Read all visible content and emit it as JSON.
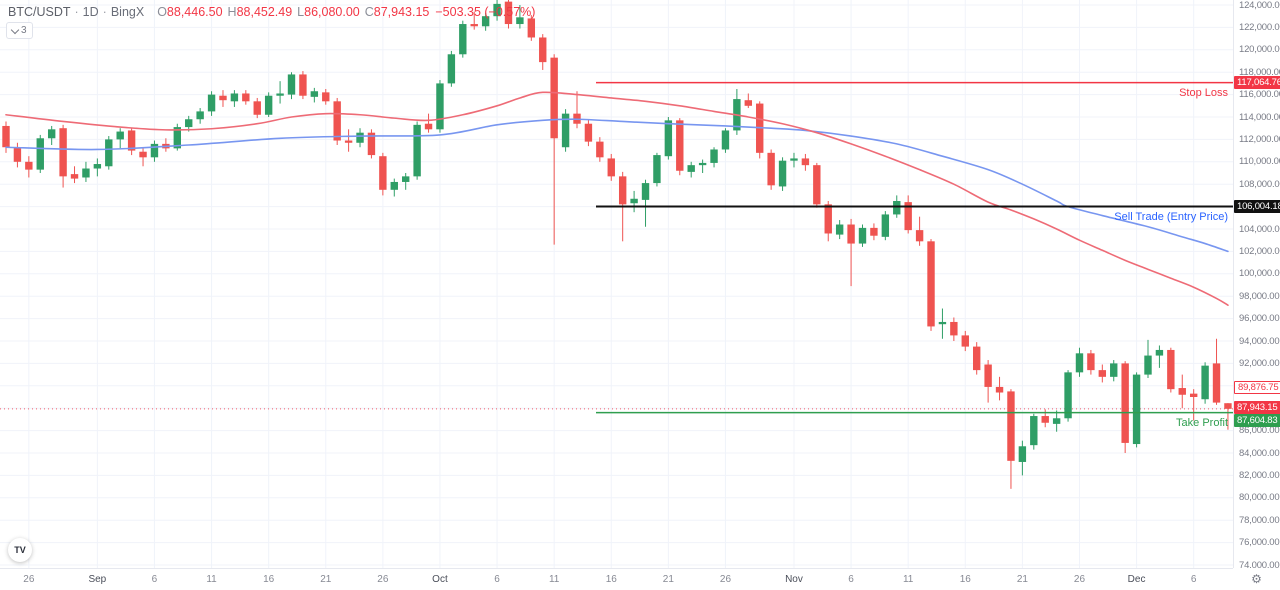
{
  "header": {
    "symbol": "BTC/USDT",
    "separator": "·",
    "interval": "1D",
    "exchange": "BingX",
    "hidden_count": "3",
    "ohlc": {
      "o_label": "O",
      "o": "88,446.50",
      "h_label": "H",
      "h": "88,452.49",
      "l_label": "L",
      "l": "86,080.00",
      "c_label": "C",
      "c": "87,943.15",
      "change": "−503.35 (−0.57%)"
    }
  },
  "icons": {
    "gear": "⚙",
    "logo": "TV"
  },
  "colors": {
    "up": "#2f9e66",
    "down": "#ef5350",
    "ma_blue": "#7896f0",
    "ma_red": "#ee6b76",
    "stop_loss": "#f23645",
    "entry": "#111111",
    "take_profit": "#2f9e4f",
    "last_price": "#f23645",
    "axis_text": "#787b86",
    "grid": "#f0f3fa"
  },
  "chart_data": {
    "type": "candlestick",
    "title": "BTC/USDT",
    "interval": "1D",
    "exchange": "BingX",
    "ylim": [
      74000,
      124000
    ],
    "y_grid_step": 2000,
    "grid": true,
    "price_axis_labels": [
      "124,000.00",
      "122,000.00",
      "120,000.00",
      "118,000.00",
      "116,000.00",
      "114,000.00",
      "112,000.00",
      "110,000.00",
      "108,000.00",
      "106,000.00",
      "104,000.00",
      "102,000.00",
      "100,000.00",
      "98,000.00",
      "96,000.00",
      "94,000.00",
      "92,000.00",
      "90,000.00",
      "88,000.00",
      "86,000.00",
      "84,000.00",
      "82,000.00",
      "80,000.00",
      "78,000.00",
      "76,000.00",
      "74,000.00"
    ],
    "time_ticks": [
      {
        "label": "26",
        "i": 2,
        "major": false
      },
      {
        "label": "Sep",
        "i": 8,
        "major": true
      },
      {
        "label": "6",
        "i": 13,
        "major": false
      },
      {
        "label": "11",
        "i": 18,
        "major": false
      },
      {
        "label": "16",
        "i": 23,
        "major": false
      },
      {
        "label": "21",
        "i": 28,
        "major": false
      },
      {
        "label": "26",
        "i": 33,
        "major": false
      },
      {
        "label": "Oct",
        "i": 38,
        "major": true
      },
      {
        "label": "6",
        "i": 43,
        "major": false
      },
      {
        "label": "11",
        "i": 48,
        "major": false
      },
      {
        "label": "16",
        "i": 53,
        "major": false
      },
      {
        "label": "21",
        "i": 58,
        "major": false
      },
      {
        "label": "26",
        "i": 63,
        "major": false
      },
      {
        "label": "Nov",
        "i": 69,
        "major": true
      },
      {
        "label": "6",
        "i": 74,
        "major": false
      },
      {
        "label": "11",
        "i": 79,
        "major": false
      },
      {
        "label": "16",
        "i": 84,
        "major": false
      },
      {
        "label": "21",
        "i": 89,
        "major": false
      },
      {
        "label": "26",
        "i": 94,
        "major": false
      },
      {
        "label": "Dec",
        "i": 99,
        "major": true
      },
      {
        "label": "6",
        "i": 104,
        "major": false
      }
    ],
    "candles": [
      [
        113200,
        113600,
        110800,
        111300
      ],
      [
        111300,
        111700,
        109500,
        110000
      ],
      [
        110000,
        110500,
        108600,
        109300
      ],
      [
        109300,
        112400,
        109000,
        112100
      ],
      [
        112100,
        113200,
        111500,
        112900
      ],
      [
        113000,
        113300,
        107700,
        108700
      ],
      [
        108900,
        109600,
        108100,
        108500
      ],
      [
        108600,
        110000,
        108200,
        109400
      ],
      [
        109400,
        110300,
        108700,
        109800
      ],
      [
        109600,
        112300,
        109300,
        112000
      ],
      [
        112000,
        113000,
        111200,
        112700
      ],
      [
        112800,
        113000,
        110600,
        111000
      ],
      [
        110900,
        111200,
        109600,
        110400
      ],
      [
        110400,
        111900,
        110000,
        111600
      ],
      [
        111600,
        112100,
        110900,
        111200
      ],
      [
        111200,
        113400,
        111000,
        113100
      ],
      [
        113100,
        114100,
        112700,
        113800
      ],
      [
        113800,
        114800,
        113400,
        114500
      ],
      [
        114500,
        116300,
        114100,
        116000
      ],
      [
        115900,
        116400,
        114900,
        115500
      ],
      [
        115400,
        116400,
        114900,
        116100
      ],
      [
        116100,
        116400,
        115100,
        115400
      ],
      [
        115400,
        115700,
        113900,
        114200
      ],
      [
        114200,
        116200,
        114000,
        115900
      ],
      [
        115900,
        117200,
        115200,
        116100
      ],
      [
        116000,
        118000,
        115600,
        117800
      ],
      [
        117800,
        118100,
        115600,
        115900
      ],
      [
        115800,
        116600,
        115300,
        116300
      ],
      [
        116200,
        116500,
        115100,
        115400
      ],
      [
        115400,
        115700,
        111500,
        111900
      ],
      [
        111900,
        112900,
        110900,
        111700
      ],
      [
        111700,
        113000,
        111300,
        112600
      ],
      [
        112600,
        112900,
        110300,
        110600
      ],
      [
        110500,
        110800,
        107000,
        107500
      ],
      [
        107500,
        108500,
        106900,
        108200
      ],
      [
        108200,
        109000,
        107500,
        108700
      ],
      [
        108700,
        113600,
        108400,
        113300
      ],
      [
        113400,
        114300,
        112600,
        112900
      ],
      [
        112900,
        117300,
        112600,
        117000
      ],
      [
        117000,
        119900,
        116700,
        119600
      ],
      [
        119600,
        122600,
        119300,
        122300
      ],
      [
        122300,
        123400,
        121800,
        122100
      ],
      [
        122100,
        123300,
        121700,
        123000
      ],
      [
        123000,
        124600,
        122600,
        124100
      ],
      [
        124300,
        125400,
        121900,
        122300
      ],
      [
        122300,
        124000,
        121900,
        122900
      ],
      [
        122800,
        123100,
        120800,
        121100
      ],
      [
        121100,
        121400,
        118200,
        118900
      ],
      [
        119300,
        119600,
        102600,
        112100
      ],
      [
        111300,
        114700,
        110900,
        114300
      ],
      [
        114300,
        116300,
        113000,
        113400
      ],
      [
        113400,
        113800,
        111400,
        111800
      ],
      [
        111800,
        112200,
        110000,
        110400
      ],
      [
        110300,
        110700,
        108300,
        108700
      ],
      [
        108700,
        109100,
        102900,
        106200
      ],
      [
        106300,
        107400,
        105500,
        106700
      ],
      [
        106600,
        108400,
        104200,
        108100
      ],
      [
        108100,
        110800,
        107800,
        110600
      ],
      [
        110500,
        114000,
        110200,
        113700
      ],
      [
        113700,
        113900,
        108800,
        109200
      ],
      [
        109100,
        110000,
        108600,
        109700
      ],
      [
        109700,
        110200,
        109000,
        109900
      ],
      [
        109900,
        111300,
        109500,
        111100
      ],
      [
        111100,
        113000,
        110800,
        112800
      ],
      [
        112800,
        116500,
        112400,
        115600
      ],
      [
        115500,
        116100,
        114800,
        115000
      ],
      [
        115200,
        115400,
        110300,
        110800
      ],
      [
        110800,
        111100,
        107500,
        107900
      ],
      [
        107800,
        110400,
        107400,
        110100
      ],
      [
        110100,
        110800,
        109500,
        110300
      ],
      [
        110300,
        110700,
        109200,
        109700
      ],
      [
        109700,
        109900,
        105900,
        106200
      ],
      [
        106200,
        106500,
        102900,
        103600
      ],
      [
        103500,
        104800,
        103100,
        104400
      ],
      [
        104400,
        104900,
        98900,
        102700
      ],
      [
        102700,
        104400,
        102400,
        104100
      ],
      [
        104100,
        104500,
        103000,
        103400
      ],
      [
        103300,
        105600,
        103000,
        105300
      ],
      [
        105300,
        107000,
        105000,
        106500
      ],
      [
        106400,
        107000,
        103600,
        103900
      ],
      [
        103900,
        105100,
        102500,
        102900
      ],
      [
        102900,
        103100,
        94900,
        95300
      ],
      [
        95500,
        96900,
        94200,
        95700
      ],
      [
        95700,
        96100,
        94000,
        94500
      ],
      [
        94500,
        94900,
        93100,
        93500
      ],
      [
        93500,
        93900,
        91000,
        91400
      ],
      [
        91900,
        92300,
        88500,
        89900
      ],
      [
        89900,
        90800,
        88700,
        89400
      ],
      [
        89500,
        89700,
        80800,
        83300
      ],
      [
        83200,
        85100,
        82000,
        84600
      ],
      [
        84700,
        87500,
        84300,
        87300
      ],
      [
        87300,
        87900,
        86300,
        86700
      ],
      [
        86600,
        87800,
        85900,
        87100
      ],
      [
        87100,
        91400,
        86800,
        91200
      ],
      [
        91200,
        93400,
        90800,
        92900
      ],
      [
        92900,
        93200,
        91000,
        91400
      ],
      [
        91400,
        91900,
        90300,
        90800
      ],
      [
        90800,
        92300,
        90400,
        92000
      ],
      [
        92000,
        92200,
        84000,
        84900
      ],
      [
        84800,
        91200,
        84500,
        91000
      ],
      [
        91000,
        94100,
        90700,
        92700
      ],
      [
        92700,
        93600,
        91600,
        93200
      ],
      [
        93200,
        93400,
        89400,
        89700
      ],
      [
        89800,
        91000,
        88000,
        89200
      ],
      [
        89300,
        89700,
        86900,
        89000
      ],
      [
        88800,
        92100,
        88400,
        91800
      ],
      [
        92000,
        94200,
        88300,
        88500
      ],
      [
        88446,
        88452,
        86080,
        87943
      ]
    ],
    "ma": [
      {
        "name": "ma-blue",
        "points": [
          [
            0,
            111300
          ],
          [
            8,
            111100
          ],
          [
            16,
            111500
          ],
          [
            24,
            112100
          ],
          [
            31,
            112300
          ],
          [
            38,
            112400
          ],
          [
            43,
            113300
          ],
          [
            47,
            113700
          ],
          [
            50,
            113800
          ],
          [
            54,
            113600
          ],
          [
            58,
            113400
          ],
          [
            63,
            113200
          ],
          [
            67,
            113000
          ],
          [
            70,
            112800
          ],
          [
            74,
            112300
          ],
          [
            78,
            111600
          ],
          [
            82,
            110500
          ],
          [
            86,
            109300
          ],
          [
            89,
            108000
          ],
          [
            92,
            106500
          ],
          [
            93,
            106000
          ],
          [
            96,
            105200
          ],
          [
            100,
            104200
          ],
          [
            103,
            103300
          ],
          [
            105,
            102700
          ],
          [
            107,
            102000
          ]
        ]
      },
      {
        "name": "ma-red",
        "points": [
          [
            0,
            114200
          ],
          [
            5,
            113600
          ],
          [
            10,
            113100
          ],
          [
            14,
            112850
          ],
          [
            18,
            112950
          ],
          [
            22,
            113400
          ],
          [
            25,
            114000
          ],
          [
            28,
            114300
          ],
          [
            31,
            114200
          ],
          [
            34,
            113900
          ],
          [
            37,
            113700
          ],
          [
            40,
            114200
          ],
          [
            43,
            115000
          ],
          [
            45,
            115700
          ],
          [
            47,
            116200
          ],
          [
            50,
            116000
          ],
          [
            53,
            115700
          ],
          [
            56,
            115400
          ],
          [
            59,
            115000
          ],
          [
            62,
            114500
          ],
          [
            65,
            114000
          ],
          [
            68,
            113400
          ],
          [
            71,
            112600
          ],
          [
            74,
            111600
          ],
          [
            77,
            110500
          ],
          [
            80,
            109300
          ],
          [
            83,
            108000
          ],
          [
            86,
            106400
          ],
          [
            88,
            105700
          ],
          [
            90,
            104900
          ],
          [
            92,
            104000
          ],
          [
            94,
            103000
          ],
          [
            96,
            102100
          ],
          [
            98,
            101200
          ],
          [
            100,
            100400
          ],
          [
            102,
            99600
          ],
          [
            104,
            98800
          ],
          [
            106,
            97800
          ],
          [
            107,
            97200
          ]
        ]
      }
    ],
    "trade_lines": [
      {
        "id": "stop-loss",
        "label": "Stop Loss",
        "price": 117064.76,
        "price_text": "117,064.76"
      },
      {
        "id": "entry",
        "label": "Sell Trade (Entry Price)",
        "price": 106004.18,
        "price_text": "106,004.18"
      },
      {
        "id": "take-profit",
        "label": "Take Profit",
        "price": 87604.83,
        "price_text": "87,604.83"
      }
    ],
    "last_price": {
      "price": 87943.15,
      "text": "87,943.15"
    },
    "outlined_price": {
      "price": 89876.75,
      "text": "89,876.75"
    }
  }
}
